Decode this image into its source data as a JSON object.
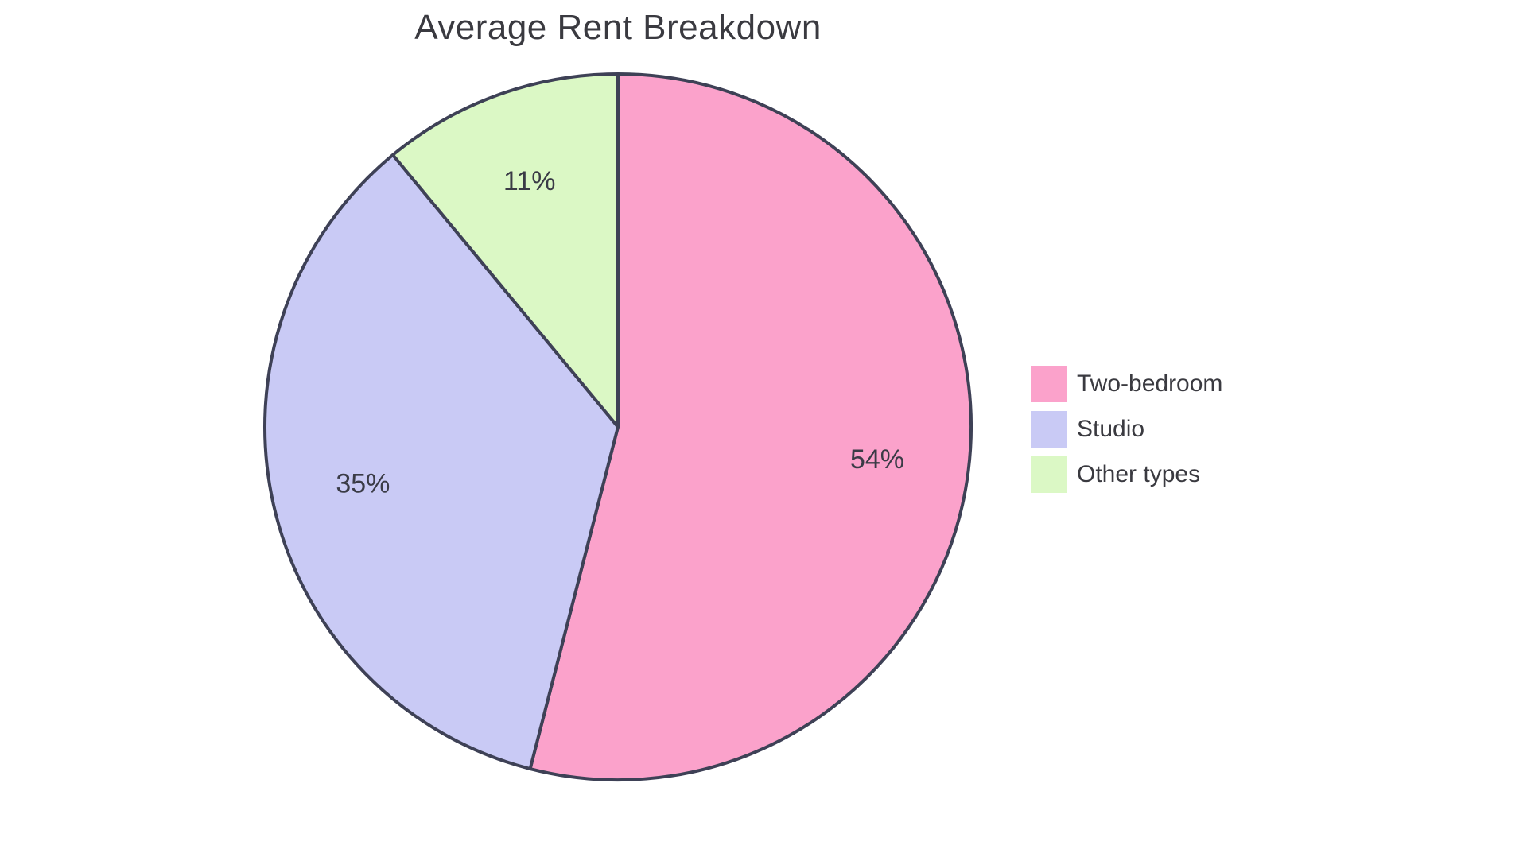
{
  "chart_data": {
    "type": "pie",
    "title": "Average Rent Breakdown",
    "series": [
      {
        "label": "Two-bedroom",
        "value": 54,
        "pct_label": "54%",
        "color": "#FBA2CB"
      },
      {
        "label": "Studio",
        "value": 35,
        "pct_label": "35%",
        "color": "#C9CAF5"
      },
      {
        "label": "Other types",
        "value": 11,
        "pct_label": "11%",
        "color": "#DBF8C5"
      }
    ],
    "start_angle": "12-o-clock",
    "direction": "clockwise",
    "outline_color": "#3E4156",
    "percent_label_color": "#3A3B46",
    "legend_position": "right",
    "grid": "off"
  }
}
